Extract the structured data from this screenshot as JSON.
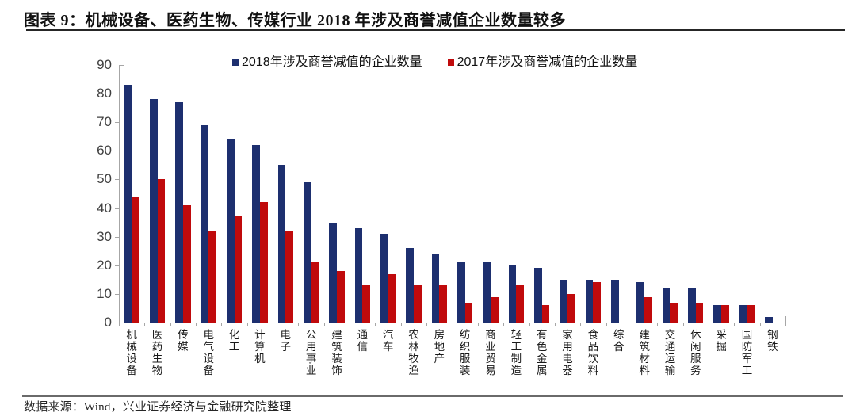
{
  "header": {
    "title": "图表 9：机械设备、医药生物、传媒行业 2018 年涉及商誉减值企业数量较多"
  },
  "footer": {
    "source": "数据来源：Wind，兴业证券经济与金融研究院整理"
  },
  "colors": {
    "series_2018": "#1d2f6f",
    "series_2017": "#c00a0c",
    "axis": "#a6a6a6",
    "title_rule": "#262626",
    "footer_rule": "#6a6a6a"
  },
  "chart_data": {
    "type": "bar",
    "title": "",
    "xlabel": "",
    "ylabel": "",
    "ylim": [
      0,
      90
    ],
    "ytick_interval": 10,
    "yticks": [
      0,
      10,
      20,
      30,
      40,
      50,
      60,
      70,
      80,
      90
    ],
    "grid": false,
    "legend_position": "top-center",
    "categories": [
      "机械设备",
      "医药生物",
      "传媒",
      "电气设备",
      "化工",
      "计算机",
      "电子",
      "公用事业",
      "建筑装饰",
      "通信",
      "汽车",
      "农林牧渔",
      "房地产",
      "纺织服装",
      "商业贸易",
      "轻工制造",
      "有色金属",
      "家用电器",
      "食品饮料",
      "综合",
      "建筑材料",
      "交通运输",
      "休闲服务",
      "采掘",
      "国防军工",
      "钢铁"
    ],
    "series": [
      {
        "name": "2018年涉及商誉减值的企业数量",
        "color": "#1d2f6f",
        "values": [
          83,
          78,
          77,
          69,
          64,
          62,
          55,
          49,
          35,
          33,
          31,
          26,
          24,
          21,
          21,
          20,
          19,
          15,
          15,
          15,
          14,
          12,
          12,
          6,
          6,
          2
        ]
      },
      {
        "name": "2017年涉及商誉减值的企业数量",
        "color": "#c00a0c",
        "values": [
          44,
          50,
          41,
          32,
          37,
          42,
          32,
          21,
          18,
          13,
          17,
          13,
          13,
          7,
          9,
          13,
          6,
          10,
          14,
          0,
          9,
          7,
          7,
          6,
          6,
          0
        ]
      }
    ]
  }
}
